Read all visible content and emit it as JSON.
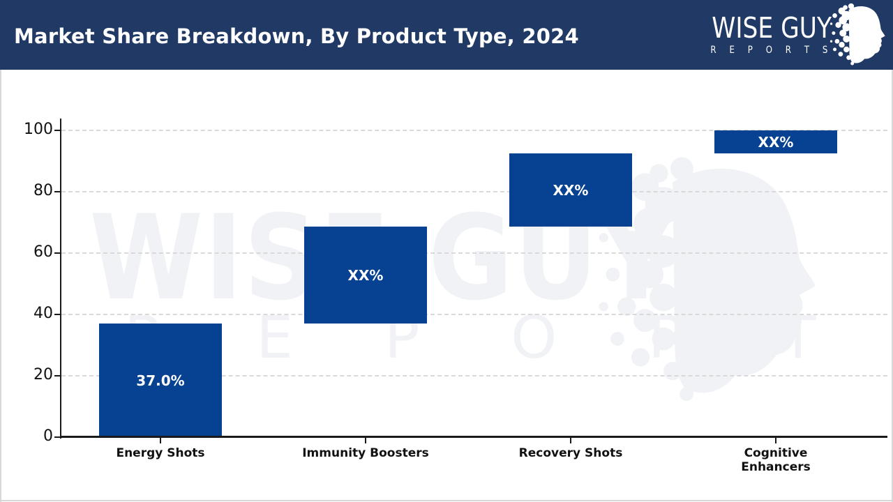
{
  "header": {
    "title": "Market Share Breakdown, By Product Type, 2024",
    "bg_color": "#213965",
    "logo": {
      "line1": "WISE GUY",
      "line2": "R E P O R T S"
    }
  },
  "watermark": {
    "line1": "WISE GUY",
    "line2": "R E P O R T S",
    "color": "#f0f2f6"
  },
  "chart_data": {
    "type": "bar",
    "subtype": "floating-waterfall",
    "title": "Market Share Breakdown, By Product Type, 2024",
    "categories": [
      "Energy Shots",
      "Immunity Boosters",
      "Recovery Shots",
      "Cognitive Enhancers"
    ],
    "segments": [
      {
        "category": "Energy Shots",
        "start": 0,
        "end": 37.0,
        "label": "37.0%"
      },
      {
        "category": "Immunity Boosters",
        "start": 37.0,
        "end": 68.6,
        "label": "XX%"
      },
      {
        "category": "Recovery Shots",
        "start": 68.6,
        "end": 92.5,
        "label": "XX%"
      },
      {
        "category": "Cognitive Enhancers",
        "start": 92.5,
        "end": 100.0,
        "label": "XX%"
      }
    ],
    "ylim": [
      0,
      100
    ],
    "yticks": [
      0,
      20,
      40,
      60,
      80,
      100
    ],
    "grid": "horizontal-dashed",
    "legend": "none",
    "colors": {
      "bar": "#074191",
      "bar_label": "#ffffff",
      "grid": "#d9d9d9",
      "axis": "#1a1a1a",
      "tick_text": "#111111"
    }
  }
}
